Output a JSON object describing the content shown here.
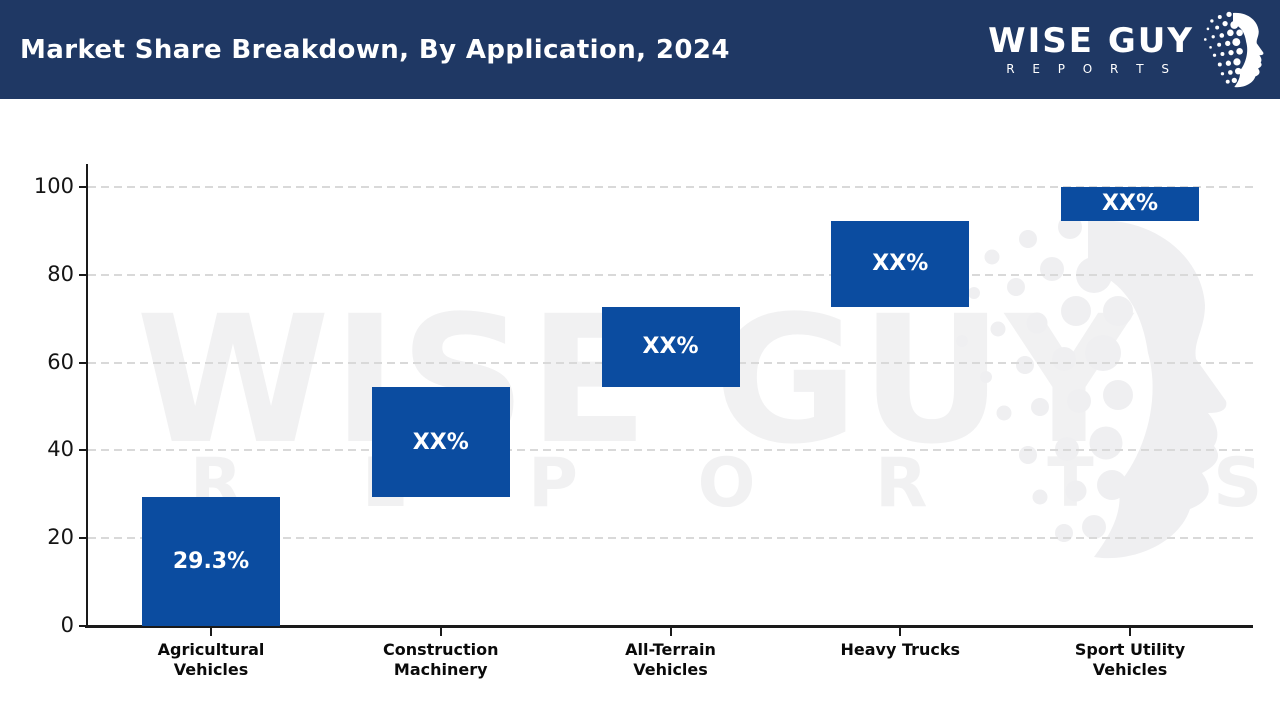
{
  "header": {
    "title": "Market Share Breakdown, By Application, 2024",
    "logo": {
      "name_top": "WISE GUY",
      "name_bottom": "R E P O R T S"
    }
  },
  "watermark": {
    "text_top": "WISE GUY",
    "text_bottom": "R E P O R T S"
  },
  "colors": {
    "header_bg": "#1f3864",
    "bar": "#0b4ca0",
    "bar_label": "#ffffff",
    "axis": "#1a1a1a",
    "grid": "#d9d9d9",
    "watermark": "#f1f1f2"
  },
  "chart_data": {
    "type": "bar",
    "subtype": "waterfall",
    "title": "Market Share Breakdown, By Application, 2024",
    "xlabel": "",
    "ylabel": "",
    "ylim": [
      0,
      100
    ],
    "yticks": [
      0,
      20,
      40,
      60,
      80,
      100
    ],
    "grid": {
      "horizontal": true,
      "style": "dashed"
    },
    "legend": null,
    "categories": [
      "Agricultural Vehicles",
      "Construction Machinery",
      "All-Terrain Vehicles",
      "Heavy Trucks",
      "Sport Utility Vehicles"
    ],
    "category_label_lines": [
      [
        "Agricultural",
        "Vehicles"
      ],
      [
        "Construction",
        "Machinery"
      ],
      [
        "All-Terrain",
        "Vehicles"
      ],
      [
        "Heavy Trucks"
      ],
      [
        "Sport Utility",
        "Vehicles"
      ]
    ],
    "segments": [
      {
        "category": "Agricultural Vehicles",
        "start": 0,
        "end": 29.3,
        "label": "29.3%"
      },
      {
        "category": "Construction Machinery",
        "start": 29.3,
        "end": 54.5,
        "label": "XX%"
      },
      {
        "category": "All-Terrain Vehicles",
        "start": 54.5,
        "end": 72.7,
        "label": "XX%"
      },
      {
        "category": "Heavy Trucks",
        "start": 72.7,
        "end": 92.3,
        "label": "XX%"
      },
      {
        "category": "Sport Utility Vehicles",
        "start": 92.3,
        "end": 100,
        "label": "XX%"
      }
    ]
  }
}
